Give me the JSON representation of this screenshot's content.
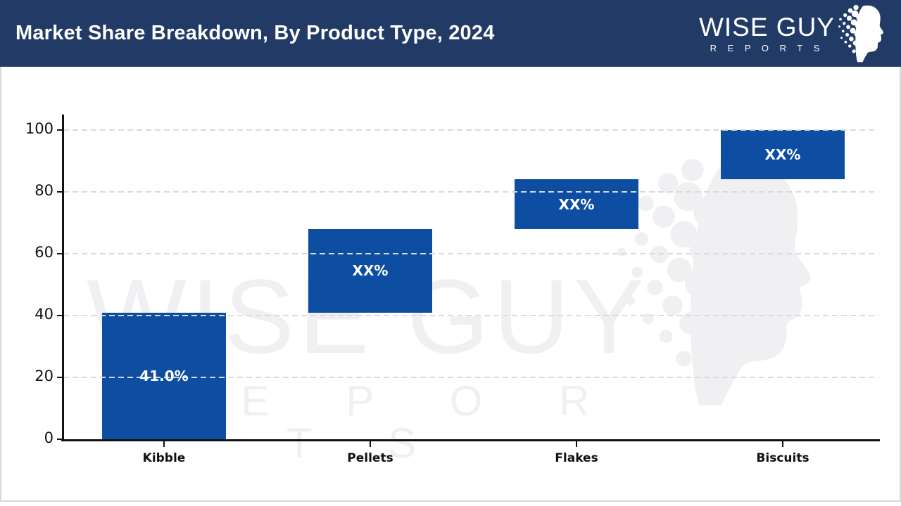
{
  "header": {
    "title": "Market Share Breakdown, By Product Type, 2024",
    "logo": {
      "line1": "WISE GUY",
      "line2": "R E P O R T S"
    }
  },
  "watermark": {
    "line1": "WISE GUY",
    "line2": "R E P O R T S"
  },
  "colors": {
    "header_bg": "#213a66",
    "bar": "#0d4da2",
    "bar_label": "#ffffff",
    "grid": "#d7dade",
    "axis": "#111111",
    "tick_label": "#111111",
    "watermark": "#f0f0f3"
  },
  "chart_data": {
    "type": "bar",
    "subtype": "waterfall",
    "title": "Market Share Breakdown, By Product Type, 2024",
    "categories": [
      "Kibble",
      "Pellets",
      "Flakes",
      "Biscuits"
    ],
    "segments": [
      {
        "category": "Kibble",
        "start": 0,
        "end": 41,
        "label": "41.0%"
      },
      {
        "category": "Pellets",
        "start": 41,
        "end": 68,
        "label": "XX%"
      },
      {
        "category": "Flakes",
        "start": 68,
        "end": 84,
        "label": "XX%"
      },
      {
        "category": "Biscuits",
        "start": 84,
        "end": 100,
        "label": "XX%"
      }
    ],
    "yticks": [
      0,
      20,
      40,
      60,
      80,
      100
    ],
    "ylim": [
      0,
      105
    ],
    "xlabel": "",
    "ylabel": "",
    "grid": "horizontal-dashed",
    "legend_position": "none"
  }
}
